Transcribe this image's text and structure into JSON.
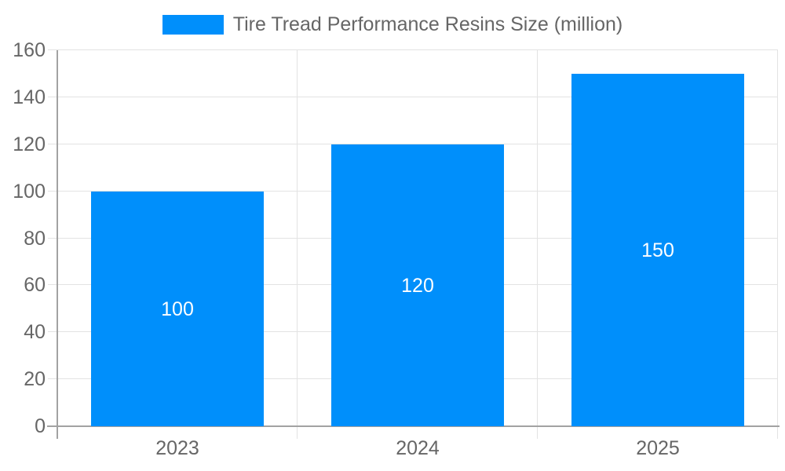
{
  "chart_data": {
    "type": "bar",
    "title": "",
    "categories": [
      "2023",
      "2024",
      "2025"
    ],
    "series": [
      {
        "name": "Tire Tread Performance Resins Size (million)",
        "values": [
          100,
          120,
          150
        ],
        "color": "#008FFB"
      }
    ],
    "bar_labels": [
      "100",
      "120",
      "150"
    ],
    "xlabel": "",
    "ylabel": "",
    "ylim": [
      0,
      160
    ],
    "ytick_step": 20,
    "yticks": [
      0,
      20,
      40,
      60,
      80,
      100,
      120,
      140,
      160
    ],
    "grid": true,
    "legend_position": "top",
    "colors": {
      "bar": "#008FFB",
      "bar_label_text": "#ffffff",
      "axis_text": "#666666",
      "legend_text": "#666666",
      "gridline": "#e3e3e3",
      "axis_line": "#a2a2a2",
      "background": "#ffffff"
    }
  }
}
